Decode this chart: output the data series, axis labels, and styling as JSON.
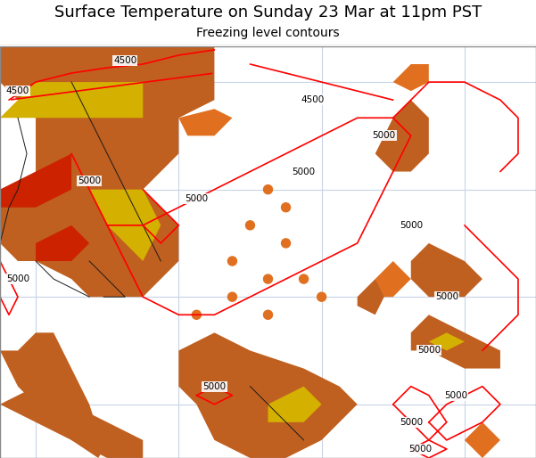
{
  "title": "Surface Temperature on Sunday 23 Mar at 11pm PST",
  "subtitle": "Freezing level contours",
  "title_fontsize": 13,
  "subtitle_fontsize": 10,
  "background_color": "#ffffff",
  "map_bg_color": "#b8c8e8",
  "border_color": "#888888",
  "figsize": [
    6.01,
    5.14
  ],
  "dpi": 100,
  "xlim": [
    98,
    128
  ],
  "ylim": [
    1,
    24
  ],
  "grid_color": "#c8d4e8",
  "grid_linewidth": 0.5,
  "contour_color": "#ff0000",
  "contour_label_color": "#ffffff",
  "contour_bg_color": "#ffffff",
  "land_colors": {
    "low": "#8B4513",
    "mid_low": "#CD853F",
    "mid": "#DAA520",
    "mid_high": "#FFD700",
    "high": "#ADFF2F",
    "highest": "#00FF00"
  },
  "sea_color": "#b8c8e8",
  "border_line_color": "#000000",
  "red_contour_color": "#cc0000"
}
